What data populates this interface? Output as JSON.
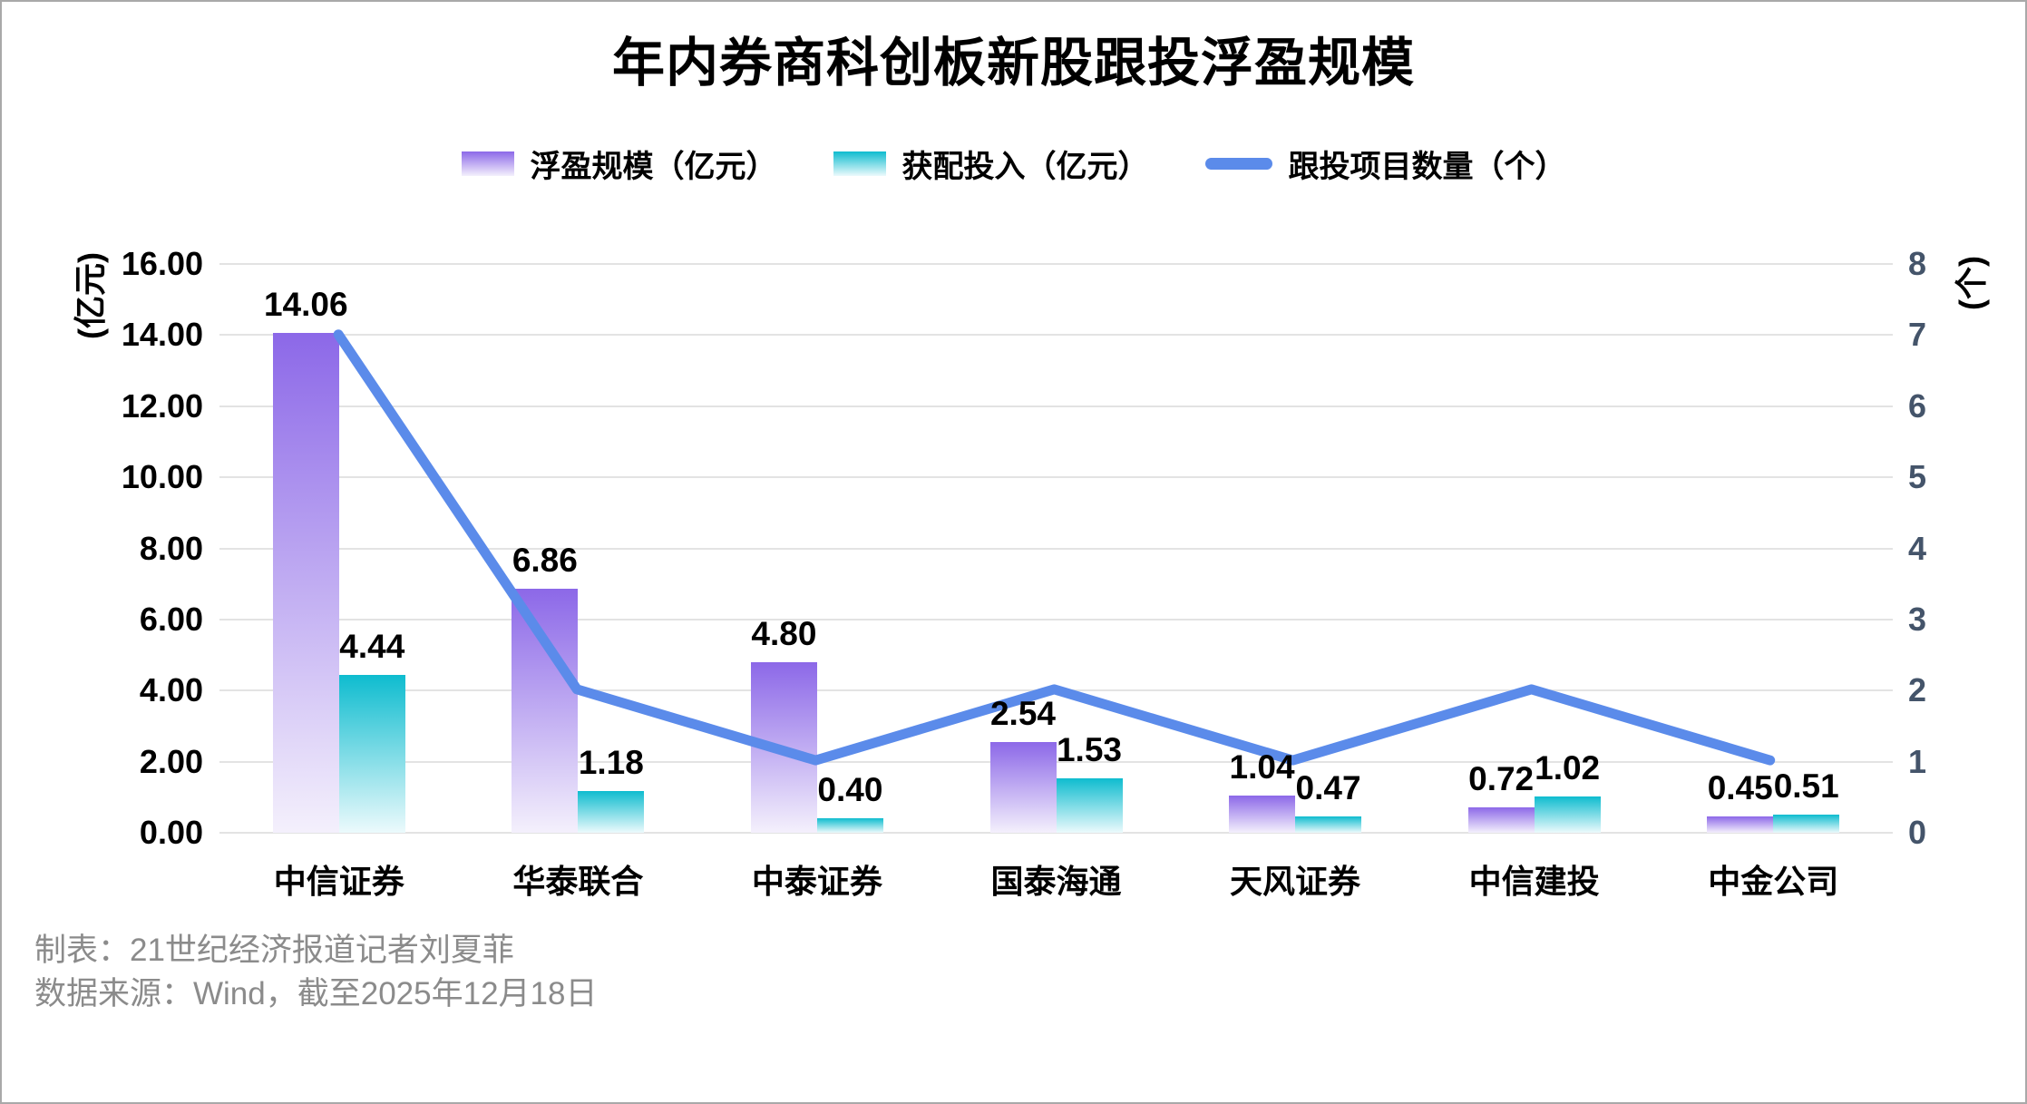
{
  "page": {
    "title": "年内券商科创板新股跟投浮盈规模"
  },
  "legend": {
    "items": [
      {
        "label": "浮盈规模（亿元）",
        "type": "bar"
      },
      {
        "label": "获配投入（亿元）",
        "type": "bar"
      },
      {
        "label": "跟投项目数量（个）",
        "type": "line"
      }
    ]
  },
  "chart_data": {
    "type": "combo-bar-line",
    "categories": [
      "中信证券",
      "华泰联合",
      "中泰证券",
      "国泰海通",
      "天风证券",
      "中信建投",
      "中金公司"
    ],
    "series": [
      {
        "name": "浮盈规模（亿元）",
        "type": "bar",
        "axis": "left",
        "color_top": "#8C68E8",
        "color_bottom": "#F4F0FC",
        "values": [
          14.06,
          6.86,
          4.8,
          2.54,
          1.04,
          0.72,
          0.45
        ]
      },
      {
        "name": "获配投入（亿元）",
        "type": "bar",
        "axis": "left",
        "color_top": "#0EBCCF",
        "color_bottom": "#ECFAFC",
        "values": [
          4.44,
          1.18,
          0.4,
          1.53,
          0.47,
          1.02,
          0.51
        ]
      },
      {
        "name": "跟投项目数量（个）",
        "type": "line",
        "axis": "right",
        "color": "#5B8BEA",
        "values": [
          7,
          2,
          1,
          2,
          1,
          2,
          1
        ]
      }
    ],
    "left_axis": {
      "title": "(亿元)",
      "min": 0,
      "max": 16,
      "step": 2,
      "decimals": 2
    },
    "right_axis": {
      "title": "(个)",
      "min": 0,
      "max": 8,
      "step": 1,
      "decimals": 0
    },
    "grid": true,
    "legend_position": "top",
    "data_labels": true
  },
  "footer": {
    "line1": "制表：21世纪经济报道记者刘夏菲",
    "line2": "数据来源：Wind，截至2025年12月18日"
  },
  "colors": {
    "grid": "#E3E3E3",
    "left_axis_text": "#000000",
    "right_axis_text": "#44546A",
    "category_text": "#000000",
    "data_label_text": "#000000",
    "footer_text": "#8B8B8B",
    "page_border": "#A9A9A9"
  }
}
